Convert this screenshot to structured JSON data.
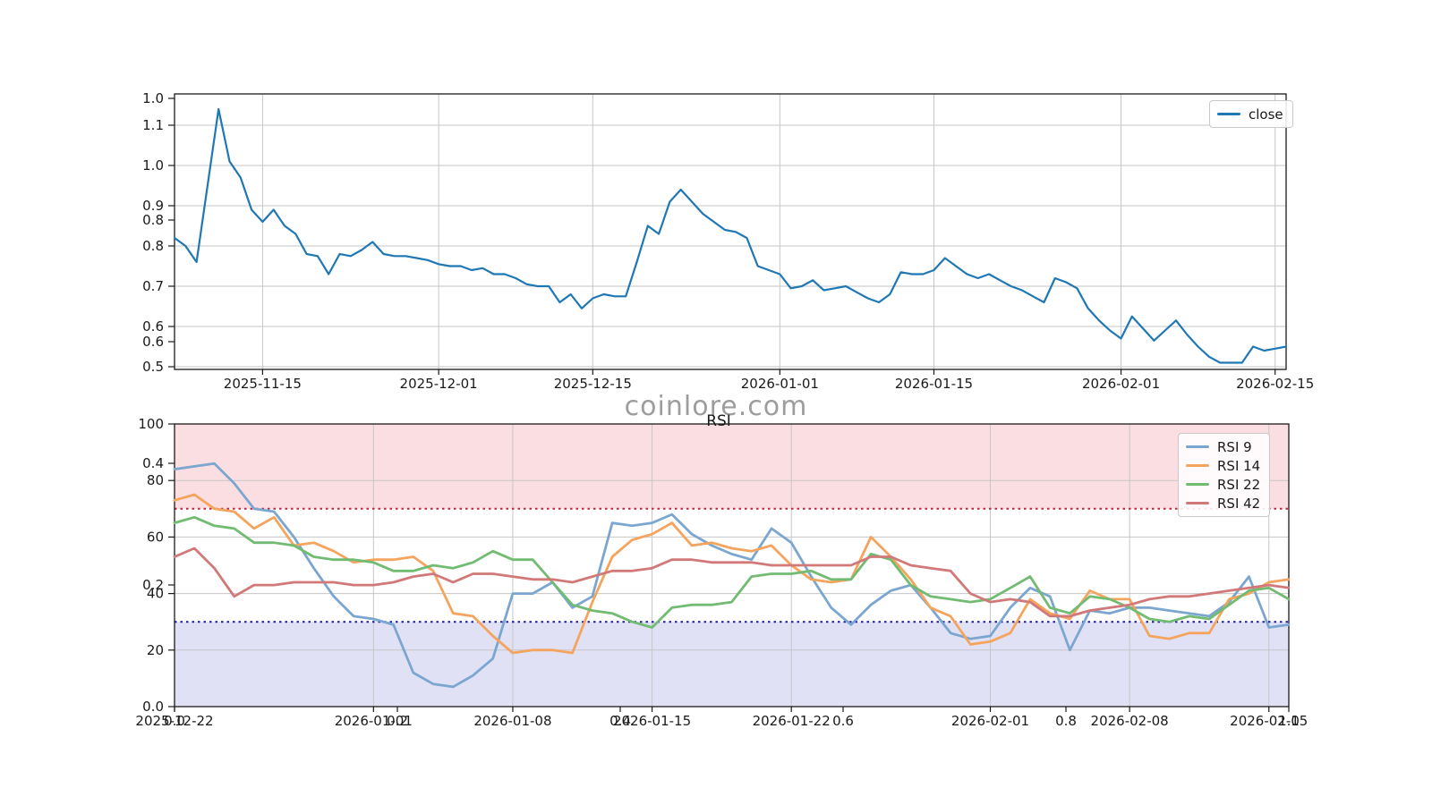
{
  "watermark": "coinlore.com",
  "chart_data": [
    {
      "type": "line",
      "name": "price-chart",
      "title": "",
      "legend_position": "top-right",
      "grid": true,
      "ylim": [
        0.5,
        1.18
      ],
      "yticks_price": [
        "1.1",
        "1.0",
        "0.9",
        "0.8",
        "0.7",
        "0.6",
        "0.5"
      ],
      "yticks_normalized": [
        "1.0",
        "0.8",
        "0.6"
      ],
      "xticks": [
        "2025-11-15",
        "2025-12-01",
        "2025-12-15",
        "2026-01-01",
        "2026-01-15",
        "2026-02-01",
        "2026-02-15"
      ],
      "x": [
        "2025-11-07",
        "2025-11-08",
        "2025-11-09",
        "2025-11-10",
        "2025-11-11",
        "2025-11-12",
        "2025-11-13",
        "2025-11-14",
        "2025-11-15",
        "2025-11-16",
        "2025-11-17",
        "2025-11-18",
        "2025-11-19",
        "2025-11-20",
        "2025-11-21",
        "2025-11-22",
        "2025-11-23",
        "2025-11-24",
        "2025-11-25",
        "2025-11-26",
        "2025-11-27",
        "2025-11-28",
        "2025-11-29",
        "2025-11-30",
        "2025-12-01",
        "2025-12-02",
        "2025-12-03",
        "2025-12-04",
        "2025-12-05",
        "2025-12-06",
        "2025-12-07",
        "2025-12-08",
        "2025-12-09",
        "2025-12-10",
        "2025-12-11",
        "2025-12-12",
        "2025-12-13",
        "2025-12-14",
        "2025-12-15",
        "2025-12-16",
        "2025-12-17",
        "2025-12-18",
        "2025-12-19",
        "2025-12-20",
        "2025-12-21",
        "2025-12-22",
        "2025-12-23",
        "2025-12-24",
        "2025-12-25",
        "2025-12-26",
        "2025-12-27",
        "2025-12-28",
        "2025-12-29",
        "2025-12-30",
        "2025-12-31",
        "2026-01-01",
        "2026-01-02",
        "2026-01-03",
        "2026-01-04",
        "2026-01-05",
        "2026-01-06",
        "2026-01-07",
        "2026-01-08",
        "2026-01-09",
        "2026-01-10",
        "2026-01-11",
        "2026-01-12",
        "2026-01-13",
        "2026-01-14",
        "2026-01-15",
        "2026-01-16",
        "2026-01-17",
        "2026-01-18",
        "2026-01-19",
        "2026-01-20",
        "2026-01-21",
        "2026-01-22",
        "2026-01-23",
        "2026-01-24",
        "2026-01-25",
        "2026-01-26",
        "2026-01-27",
        "2026-01-28",
        "2026-01-29",
        "2026-01-30",
        "2026-01-31",
        "2026-02-01",
        "2026-02-02",
        "2026-02-03",
        "2026-02-04",
        "2026-02-05",
        "2026-02-06",
        "2026-02-07",
        "2026-02-08",
        "2026-02-09",
        "2026-02-10",
        "2026-02-11",
        "2026-02-12",
        "2026-02-13",
        "2026-02-14",
        "2026-02-15",
        "2026-02-16"
      ],
      "series": [
        {
          "name": "close",
          "color": "#1f77b4",
          "values": [
            0.82,
            0.8,
            0.76,
            0.95,
            1.14,
            1.01,
            0.97,
            0.89,
            0.86,
            0.89,
            0.85,
            0.83,
            0.78,
            0.775,
            0.73,
            0.78,
            0.775,
            0.79,
            0.81,
            0.78,
            0.775,
            0.775,
            0.77,
            0.765,
            0.755,
            0.75,
            0.75,
            0.74,
            0.745,
            0.73,
            0.73,
            0.72,
            0.705,
            0.7,
            0.7,
            0.66,
            0.68,
            0.645,
            0.67,
            0.68,
            0.675,
            0.675,
            0.76,
            0.85,
            0.83,
            0.91,
            0.94,
            0.91,
            0.88,
            0.86,
            0.84,
            0.835,
            0.82,
            0.75,
            0.74,
            0.73,
            0.695,
            0.7,
            0.715,
            0.69,
            0.695,
            0.7,
            0.685,
            0.67,
            0.66,
            0.68,
            0.735,
            0.73,
            0.73,
            0.74,
            0.77,
            0.75,
            0.73,
            0.72,
            0.73,
            0.715,
            0.7,
            0.69,
            0.675,
            0.66,
            0.72,
            0.71,
            0.695,
            0.645,
            0.615,
            0.59,
            0.57,
            0.625,
            0.595,
            0.565,
            0.59,
            0.615,
            0.58,
            0.55,
            0.525,
            0.51,
            0.51,
            0.51,
            0.55,
            0.54,
            0.545,
            0.55
          ]
        }
      ]
    },
    {
      "type": "line",
      "name": "rsi-chart",
      "title": "RSI",
      "legend_position": "top-right",
      "grid": true,
      "ylim": [
        0,
        100
      ],
      "thresholds": {
        "overbought": 70,
        "oversold": 30,
        "overbought_color": "#c2223a",
        "oversold_color": "#1b1ba0"
      },
      "bands": [
        {
          "from": 70,
          "to": 100,
          "color": "#fbdee2"
        },
        {
          "from": 0,
          "to": 30,
          "color": "#e1e1f6"
        }
      ],
      "yticks_rsi": [
        "100",
        "80",
        "60",
        "40",
        "20"
      ],
      "yticks_normalized": [
        "0.4",
        "0.2",
        "0.0"
      ],
      "xticks": [
        "2025-12-22",
        "2026-01-01",
        "2026-01-08",
        "2026-01-15",
        "2026-01-22",
        "2026-02-01",
        "2026-02-08",
        "2026-02-15"
      ],
      "xticks_normalized": [
        "0.0",
        "0.2",
        "0.4",
        "0.6",
        "0.8",
        "1.0"
      ],
      "x": [
        "2025-12-22",
        "2025-12-23",
        "2025-12-24",
        "2025-12-25",
        "2025-12-26",
        "2025-12-27",
        "2025-12-28",
        "2025-12-29",
        "2025-12-30",
        "2025-12-31",
        "2026-01-01",
        "2026-01-02",
        "2026-01-03",
        "2026-01-04",
        "2026-01-05",
        "2026-01-06",
        "2026-01-07",
        "2026-01-08",
        "2026-01-09",
        "2026-01-10",
        "2026-01-11",
        "2026-01-12",
        "2026-01-13",
        "2026-01-14",
        "2026-01-15",
        "2026-01-16",
        "2026-01-17",
        "2026-01-18",
        "2026-01-19",
        "2026-01-20",
        "2026-01-21",
        "2026-01-22",
        "2026-01-23",
        "2026-01-24",
        "2026-01-25",
        "2026-01-26",
        "2026-01-27",
        "2026-01-28",
        "2026-01-29",
        "2026-01-30",
        "2026-01-31",
        "2026-02-01",
        "2026-02-02",
        "2026-02-03",
        "2026-02-04",
        "2026-02-05",
        "2026-02-06",
        "2026-02-07",
        "2026-02-08",
        "2026-02-09",
        "2026-02-10",
        "2026-02-11",
        "2026-02-12",
        "2026-02-13",
        "2026-02-14",
        "2026-02-15",
        "2026-02-16"
      ],
      "series": [
        {
          "name": "RSI 9",
          "color": "#7aa6d0",
          "values": [
            84,
            85,
            86,
            79,
            70,
            69,
            60,
            49,
            39,
            32,
            31,
            29,
            12,
            8,
            7,
            11,
            17,
            40,
            40,
            44,
            35,
            39,
            65,
            64,
            65,
            68,
            61,
            57,
            54,
            52,
            63,
            58,
            46,
            35,
            29,
            36,
            41,
            43,
            35,
            26,
            24,
            25,
            35,
            42,
            39,
            20,
            34,
            33,
            35,
            35,
            34,
            33,
            32,
            37,
            46,
            28,
            29
          ]
        },
        {
          "name": "RSI 14",
          "color": "#f5a45e",
          "values": [
            73,
            75,
            70,
            69,
            63,
            67,
            57,
            58,
            55,
            51,
            52,
            52,
            53,
            48,
            33,
            32,
            25,
            19,
            20,
            20,
            19,
            37,
            53,
            59,
            61,
            65,
            57,
            58,
            56,
            55,
            57,
            50,
            45,
            44,
            45,
            60,
            53,
            45,
            35,
            32,
            22,
            23,
            26,
            38,
            33,
            31,
            41,
            38,
            38,
            25,
            24,
            26,
            26,
            38,
            40,
            44,
            45
          ]
        },
        {
          "name": "RSI 22",
          "color": "#72bb72",
          "values": [
            65,
            67,
            64,
            63,
            58,
            58,
            57,
            53,
            52,
            52,
            51,
            48,
            48,
            50,
            49,
            51,
            55,
            52,
            52,
            44,
            36,
            34,
            33,
            30,
            28,
            35,
            36,
            36,
            37,
            46,
            47,
            47,
            48,
            45,
            45,
            54,
            52,
            43,
            39,
            38,
            37,
            38,
            42,
            46,
            35,
            33,
            39,
            38,
            35,
            31,
            30,
            32,
            31,
            36,
            41,
            42,
            38
          ]
        },
        {
          "name": "RSI 42",
          "color": "#d17878",
          "values": [
            53,
            56,
            49,
            39,
            43,
            43,
            44,
            44,
            44,
            43,
            43,
            44,
            46,
            47,
            44,
            47,
            47,
            46,
            45,
            45,
            44,
            46,
            48,
            48,
            49,
            52,
            52,
            51,
            51,
            51,
            50,
            50,
            50,
            50,
            50,
            53,
            53,
            50,
            49,
            48,
            40,
            37,
            38,
            37,
            32,
            32,
            34,
            35,
            36,
            38,
            39,
            39,
            40,
            41,
            42,
            43,
            42
          ]
        }
      ]
    }
  ]
}
